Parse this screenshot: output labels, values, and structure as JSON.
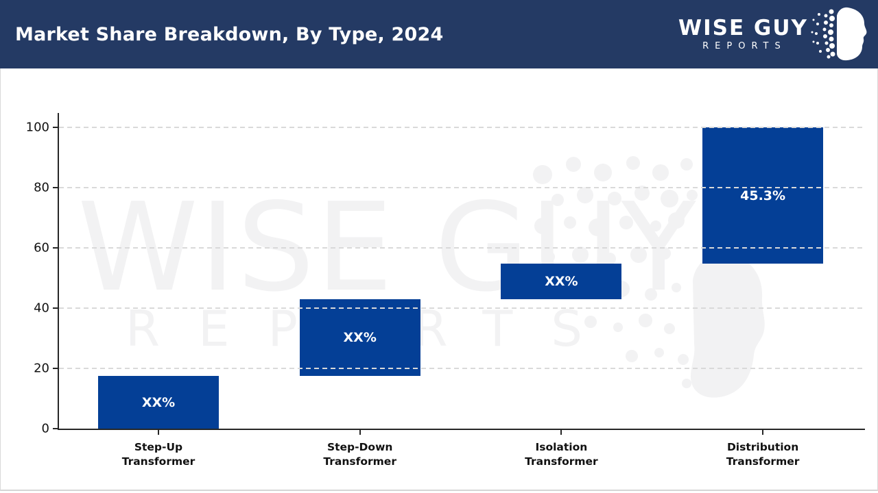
{
  "header": {
    "title": "Market Share Breakdown, By Type, 2024",
    "logo": {
      "wordmark": "WISE GUY",
      "subtext": "REPORTS"
    }
  },
  "watermark": {
    "line1": "WISE GUY",
    "line2": "REPORTS"
  },
  "colors": {
    "header_bg": "#243a64",
    "bar": "#043f96",
    "gridline": "#d9d9d9",
    "axis": "#262626",
    "watermark": "#f2f2f3",
    "title_text": "#ffffff"
  },
  "chart_data": {
    "type": "bar",
    "subtype": "waterfall",
    "title": "Market Share Breakdown, By Type, 2024",
    "categories": [
      "Step-Up\nTransformer",
      "Step-Down\nTransformer",
      "Isolation\nTransformer",
      "Distribution\nTransformer"
    ],
    "series": [
      {
        "name": "Market Share",
        "segments": [
          {
            "category": "Step-Up Transformer",
            "start": 0,
            "end": 17.5,
            "label": "XX%"
          },
          {
            "category": "Step-Down Transformer",
            "start": 17.5,
            "end": 43.0,
            "label": "XX%"
          },
          {
            "category": "Isolation Transformer",
            "start": 43.0,
            "end": 54.7,
            "label": "XX%"
          },
          {
            "category": "Distribution Transformer",
            "start": 54.7,
            "end": 100,
            "label": "45.3%"
          }
        ]
      }
    ],
    "ylim": [
      0,
      100
    ],
    "yticks": [
      0,
      20,
      40,
      60,
      80,
      100
    ],
    "xlabel": "",
    "ylabel": "",
    "grid": "horizontal-dashed-above-bars",
    "legend": "none",
    "bar_color": "#043f96"
  }
}
